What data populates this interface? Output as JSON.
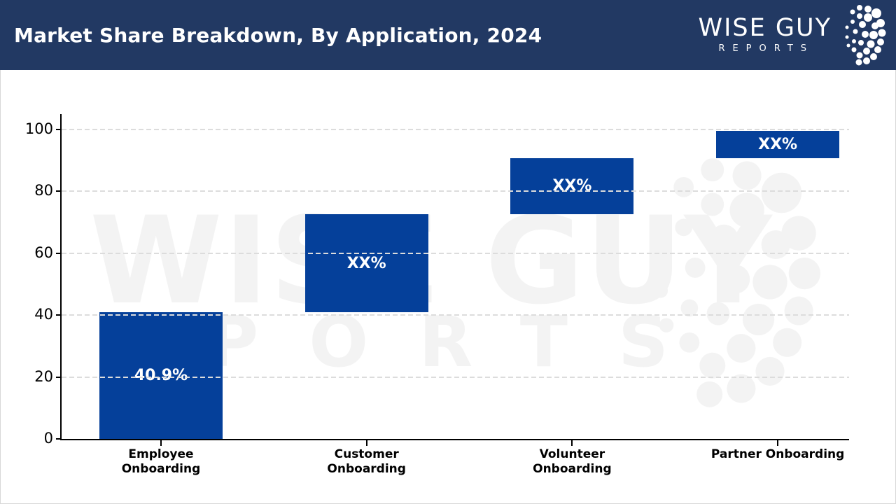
{
  "header": {
    "title": "Market Share Breakdown, By Application, 2024",
    "logo": {
      "name": "WISE GUY",
      "subtitle": "REPORTS"
    }
  },
  "watermark": {
    "line1": "WISE GUY",
    "line2": "PORTS"
  },
  "chart_data": {
    "type": "bar",
    "subtype": "floating-range-waterfall",
    "title": "Market Share Breakdown, By Application, 2024",
    "categories": [
      [
        "Employee",
        "Onboarding"
      ],
      [
        "Customer",
        "Onboarding"
      ],
      [
        "Volunteer",
        "Onboarding"
      ],
      [
        "Partner Onboarding"
      ]
    ],
    "bars": [
      {
        "category": "Employee Onboarding",
        "start": 0,
        "end": 40.9,
        "label": "40.9%"
      },
      {
        "category": "Customer Onboarding",
        "start": 40.9,
        "end": 72.6,
        "label": "XX%"
      },
      {
        "category": "Volunteer Onboarding",
        "start": 72.6,
        "end": 90.8,
        "label": "XX%"
      },
      {
        "category": "Partner Onboarding",
        "start": 90.8,
        "end": 99.5,
        "label": "XX%"
      }
    ],
    "y_ticks": [
      0,
      20,
      40,
      60,
      80,
      100
    ],
    "ylim": [
      0,
      105
    ],
    "xlabel": "",
    "ylabel": "",
    "bar_color": "#05409A",
    "grid": "horizontal-dashed",
    "legend": "none"
  }
}
